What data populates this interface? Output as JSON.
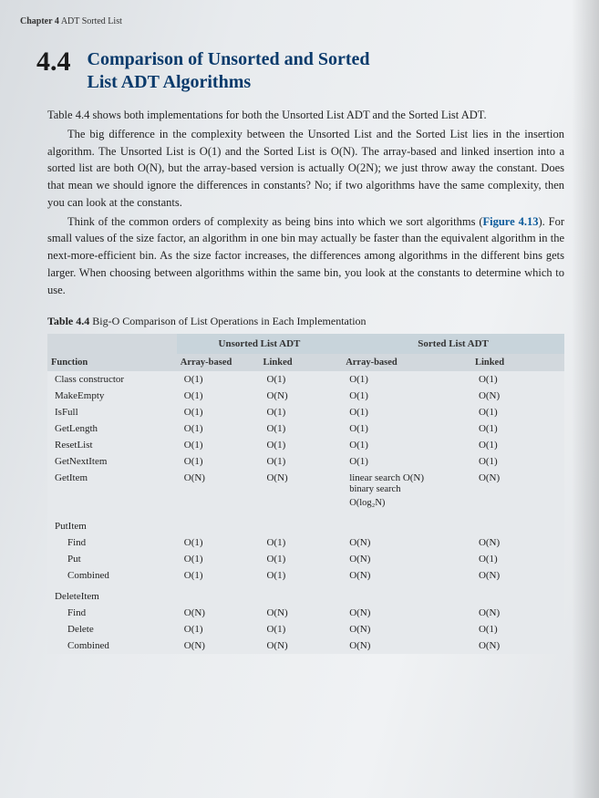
{
  "chapter_header": {
    "label": "Chapter 4",
    "title": "ADT Sorted List"
  },
  "section": {
    "number": "4.4",
    "title_l1": "Comparison of Unsorted and Sorted",
    "title_l2": "List ADT Algorithms"
  },
  "paragraphs": {
    "p1": "Table 4.4 shows both implementations for both the Unsorted List ADT and the Sorted List ADT.",
    "p2": "The big difference in the complexity between the Unsorted List and the Sorted List lies in the insertion algorithm. The Unsorted List is O(1) and the Sorted List is O(N). The array-based and linked insertion into a sorted list are both O(N), but the array-based version is actually O(2N); we just throw away the constant. Does that mean we should ignore the differences in constants? No; if two algorithms have the same complexity, then you can look at the constants.",
    "p3a": "Think of the common orders of complexity as being bins into which we sort algorithms (",
    "fig_ref": "Figure 4.13",
    "p3b": "). For small values of the size factor, an algorithm in one bin may actually be faster than the equivalent algorithm in the next-more-efficient bin. As the size factor increases, the differences among algorithms in the different bins gets larger. When choosing between algorithms within the same bin, you look at the constants to determine which to use."
  },
  "table": {
    "caption_bold": "Table 4.4",
    "caption_rest": "Big-O Comparison of List Operations in Each Implementation",
    "group1": "Unsorted List ADT",
    "group2": "Sorted List ADT",
    "head_fn": "Function",
    "head_ab": "Array-based",
    "head_lk": "Linked",
    "head_ab2": "Array-based",
    "head_lk2": "Linked",
    "rows": [
      {
        "fn": "Class constructor",
        "a": "O(1)",
        "b": "O(1)",
        "c": "O(1)",
        "d": "O(1)"
      },
      {
        "fn": "MakeEmpty",
        "a": "O(1)",
        "b": "O(N)",
        "c": "O(1)",
        "d": "O(N)"
      },
      {
        "fn": "IsFull",
        "a": "O(1)",
        "b": "O(1)",
        "c": "O(1)",
        "d": "O(1)"
      },
      {
        "fn": "GetLength",
        "a": "O(1)",
        "b": "O(1)",
        "c": "O(1)",
        "d": "O(1)"
      },
      {
        "fn": "ResetList",
        "a": "O(1)",
        "b": "O(1)",
        "c": "O(1)",
        "d": "O(1)"
      },
      {
        "fn": "GetNextItem",
        "a": "O(1)",
        "b": "O(1)",
        "c": "O(1)",
        "d": "O(1)"
      },
      {
        "fn": "GetItem",
        "a": "O(N)",
        "b": "O(N)",
        "c": "linear search O(N)",
        "d": "O(N)"
      }
    ],
    "getitem_extra1": "binary search",
    "getitem_extra2": "O(log₂N)",
    "sections": {
      "put": {
        "label": "PutItem",
        "find": {
          "fn": "Find",
          "a": "O(1)",
          "b": "O(1)",
          "c": "O(N)",
          "d": "O(N)"
        },
        "put": {
          "fn": "Put",
          "a": "O(1)",
          "b": "O(1)",
          "c": "O(N)",
          "d": "O(1)"
        },
        "comb": {
          "fn": "Combined",
          "a": "O(1)",
          "b": "O(1)",
          "c": "O(N)",
          "d": "O(N)"
        }
      },
      "del": {
        "label": "DeleteItem",
        "find": {
          "fn": "Find",
          "a": "O(N)",
          "b": "O(N)",
          "c": "O(N)",
          "d": "O(N)"
        },
        "del": {
          "fn": "Delete",
          "a": "O(1)",
          "b": "O(1)",
          "c": "O(N)",
          "d": "O(1)"
        },
        "comb": {
          "fn": "Combined",
          "a": "O(N)",
          "b": "O(N)",
          "c": "O(N)",
          "d": "O(N)"
        }
      }
    }
  },
  "colors": {
    "title": "#0a3a6b",
    "figref": "#0a5a9b",
    "thead_group_bg": "#c8d4db",
    "thead_bg": "#d2d8dd",
    "table_bg": "#e6e9ec"
  }
}
